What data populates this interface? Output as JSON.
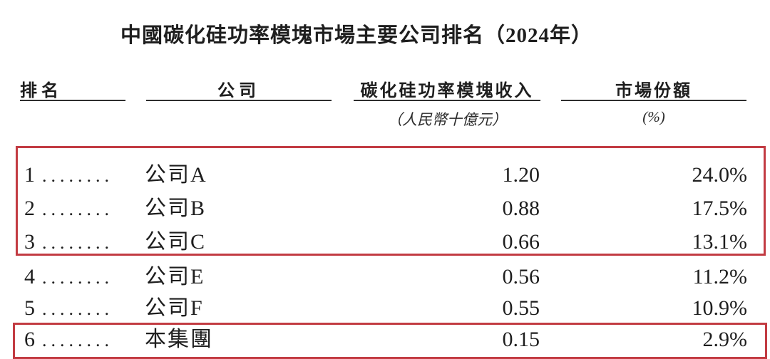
{
  "page": {
    "background": "#ffffff",
    "text_color": "#1e1e1e",
    "highlight_color": "#c23b42"
  },
  "title": "中國碳化硅功率模塊市場主要公司排名（2024年）",
  "table": {
    "headers": {
      "rank": "排名",
      "company": "公司",
      "revenue": "碳化硅功率模塊收入",
      "revenue_unit": "（人民幣十億元）",
      "share": "市場份額",
      "share_unit": "(%)"
    },
    "leader_dots": "........",
    "rows": [
      {
        "rank": "1",
        "company": "公司A",
        "revenue": "1.20",
        "share": "24.0%",
        "highlighted": true
      },
      {
        "rank": "2",
        "company": "公司B",
        "revenue": "0.88",
        "share": "17.5%",
        "highlighted": true
      },
      {
        "rank": "3",
        "company": "公司C",
        "revenue": "0.66",
        "share": "13.1%",
        "highlighted": true
      },
      {
        "rank": "4",
        "company": "公司E",
        "revenue": "0.56",
        "share": "11.2%",
        "highlighted": false
      },
      {
        "rank": "5",
        "company": "公司F",
        "revenue": "0.55",
        "share": "10.9%",
        "highlighted": false
      },
      {
        "rank": "6",
        "company": "本集團",
        "revenue": "0.15",
        "share": "2.9%",
        "highlighted": true
      }
    ]
  }
}
